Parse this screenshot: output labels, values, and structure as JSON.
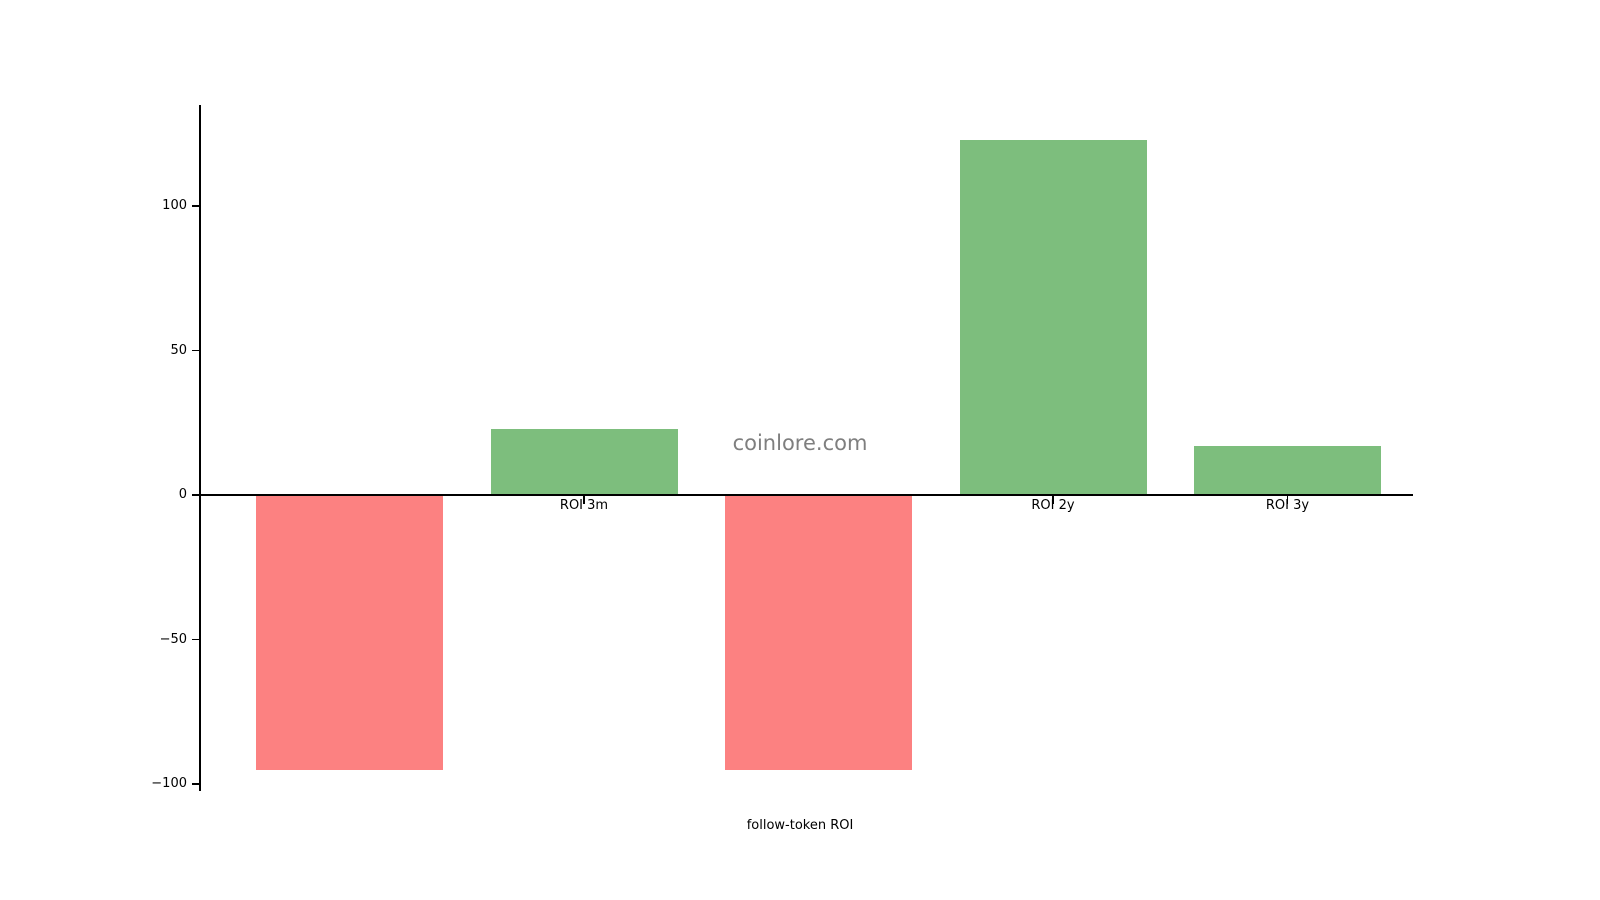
{
  "watermark": {
    "text": "coinlore.com",
    "color": "#7f7f7f"
  },
  "footer": {
    "label": "follow-token ROI"
  },
  "chart_data": {
    "type": "bar",
    "categories": [
      "",
      "ROI 3m",
      "",
      "ROI 2y",
      "ROI 3y"
    ],
    "values": [
      -95,
      23,
      -95,
      123,
      17
    ],
    "title": "",
    "xlabel": "follow-token ROI",
    "ylabel": "",
    "ylim": [
      -102,
      135
    ],
    "yticks": [
      {
        "value": -100,
        "label": "−100"
      },
      {
        "value": -50,
        "label": "−50"
      },
      {
        "value": 0,
        "label": "0"
      },
      {
        "value": 50,
        "label": "50"
      },
      {
        "value": 100,
        "label": "100"
      }
    ],
    "bar_colors": [
      "#fc8181",
      "#7dbe7d",
      "#fc8181",
      "#7dbe7d",
      "#7dbe7d"
    ],
    "positive_color": "#7dbe7d",
    "negative_color": "#fc8181",
    "axis_color": "#000000",
    "grid": false,
    "legend": false
  }
}
